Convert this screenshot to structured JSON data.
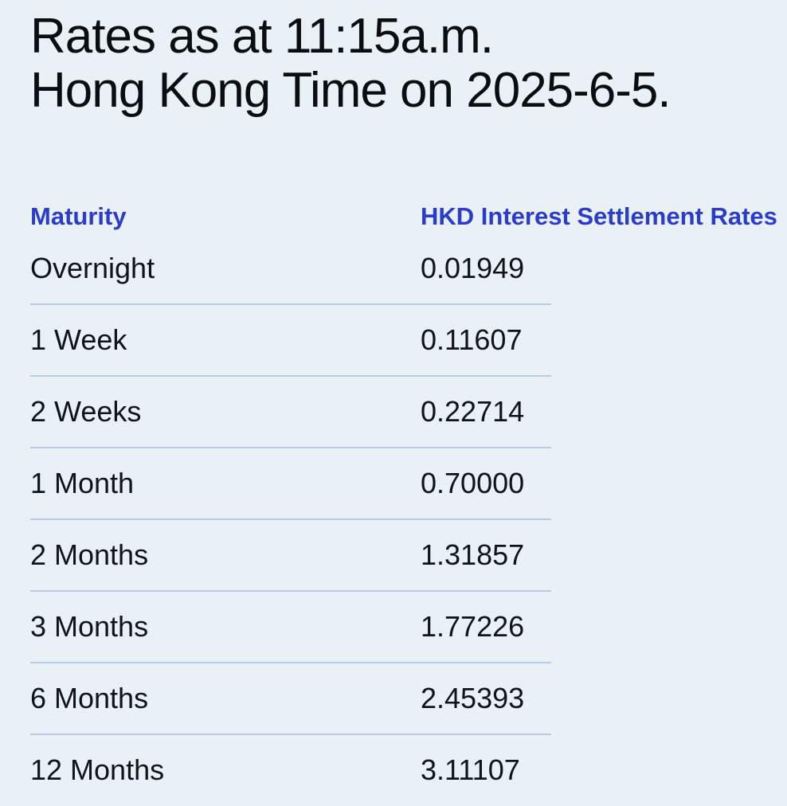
{
  "page": {
    "title_line1": "Rates as at 11:15a.m.",
    "title_line2": "Hong Kong Time on 2025-6-5."
  },
  "table": {
    "headers": {
      "maturity": "Maturity",
      "rates": "HKD Interest Settlement Rates"
    },
    "rows": [
      {
        "maturity": "Overnight",
        "rate": "0.01949"
      },
      {
        "maturity": "1 Week",
        "rate": "0.11607"
      },
      {
        "maturity": "2 Weeks",
        "rate": "0.22714"
      },
      {
        "maturity": "1 Month",
        "rate": "0.70000"
      },
      {
        "maturity": "2 Months",
        "rate": "1.31857"
      },
      {
        "maturity": "3 Months",
        "rate": "1.77226"
      },
      {
        "maturity": "6 Months",
        "rate": "2.45393"
      },
      {
        "maturity": "12 Months",
        "rate": "3.11107"
      }
    ]
  },
  "colors": {
    "background": "#e9f1f6",
    "header_text": "#2b3cc9",
    "divider": "#b8cbe3",
    "body_text": "#101418"
  }
}
